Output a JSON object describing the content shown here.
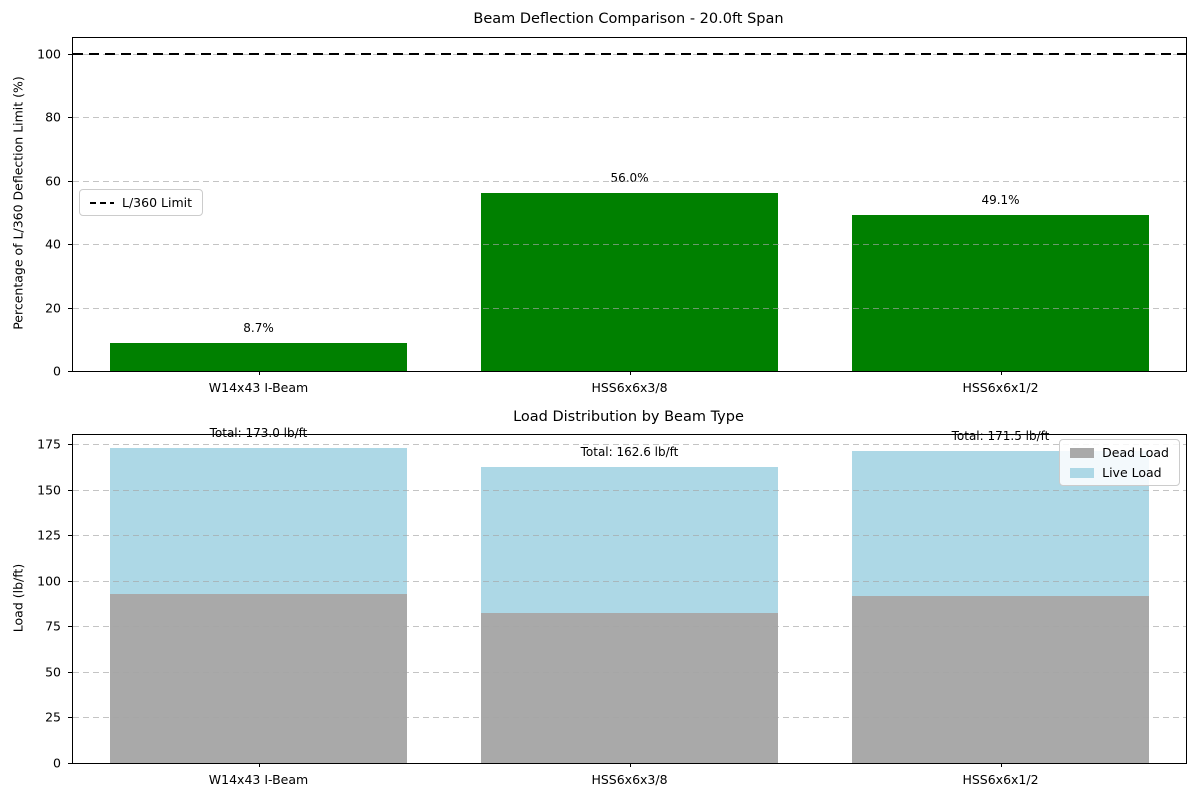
{
  "chart_data": [
    {
      "type": "bar",
      "title": "Beam Deflection Comparison - 20.0ft Span",
      "ylabel": "Percentage of L/360 Deflection Limit (%)",
      "xlabel": "",
      "categories": [
        "W14x43 I-Beam",
        "HSS6x6x3/8",
        "HSS6x6x1/2"
      ],
      "values": [
        8.7,
        56.0,
        49.1
      ],
      "value_labels": [
        "8.7%",
        "56.0%",
        "49.1%"
      ],
      "bar_color": "#008000",
      "ylim": [
        0,
        105
      ],
      "yticks": [
        0,
        20,
        40,
        60,
        80,
        100
      ],
      "grid": "y-dashed",
      "reference_line": {
        "value": 100,
        "label": "L/360 Limit",
        "color": "#000000",
        "linestyle": "dashed"
      },
      "legend": {
        "position": "center-left",
        "entries": [
          {
            "label": "L/360 Limit",
            "swatch": "dashed-black-line"
          }
        ]
      }
    },
    {
      "type": "stacked-bar",
      "title": "Load Distribution by Beam Type",
      "ylabel": "Load (lb/ft)",
      "xlabel": "",
      "categories": [
        "W14x43 I-Beam",
        "HSS6x6x3/8",
        "HSS6x6x1/2"
      ],
      "series": [
        {
          "name": "Dead Load",
          "color": "#a9a9a9",
          "values": [
            93.0,
            82.6,
            91.5
          ]
        },
        {
          "name": "Live Load",
          "color": "#add8e6",
          "values": [
            80.0,
            80.0,
            80.0
          ]
        }
      ],
      "totals": [
        173.0,
        162.6,
        171.5
      ],
      "total_labels": [
        "Total: 173.0 lb/ft",
        "Total: 162.6 lb/ft",
        "Total: 171.5 lb/ft"
      ],
      "ylim": [
        0,
        180
      ],
      "yticks": [
        0,
        25,
        50,
        75,
        100,
        125,
        150,
        175
      ],
      "grid": "y-dashed",
      "legend": {
        "position": "upper-right",
        "entries": [
          {
            "label": "Dead Load",
            "swatch": "#a9a9a9"
          },
          {
            "label": "Live Load",
            "swatch": "#add8e6"
          }
        ]
      }
    }
  ]
}
